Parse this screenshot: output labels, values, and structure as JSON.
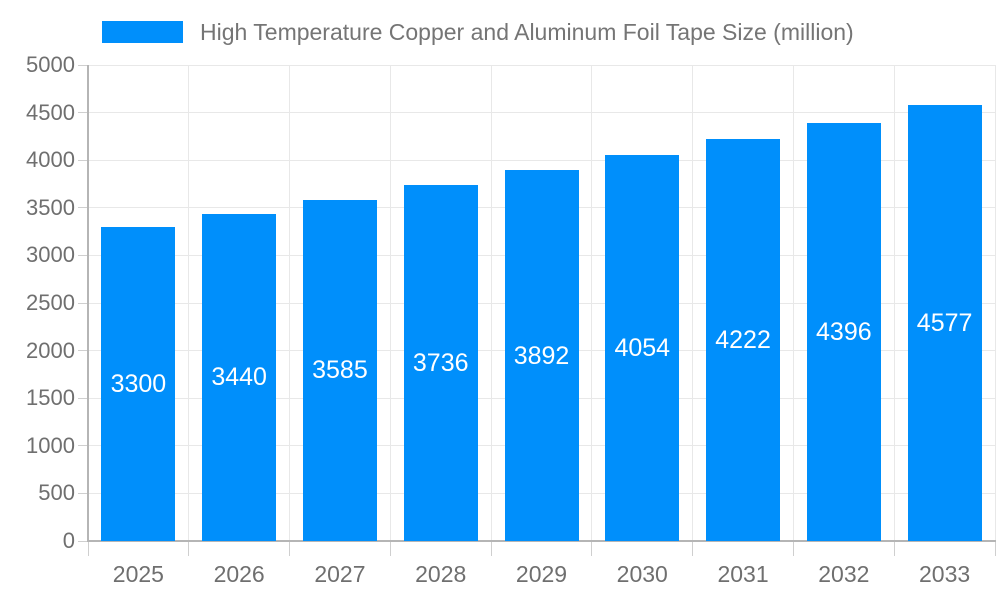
{
  "legend": {
    "label": "High Temperature Copper and Aluminum Foil Tape Size (million)",
    "marker_color": "#008FFB"
  },
  "chart_data": {
    "type": "bar",
    "title": "High Temperature Copper and Aluminum Foil Tape Size (million)",
    "categories": [
      "2025",
      "2026",
      "2027",
      "2028",
      "2029",
      "2030",
      "2031",
      "2032",
      "2033"
    ],
    "values": [
      3300,
      3440,
      3585,
      3736,
      3892,
      4054,
      4222,
      4396,
      4577
    ],
    "xlabel": "",
    "ylabel": "",
    "ylim": [
      0,
      5000
    ],
    "ytick_step": 500,
    "ytick_labels": [
      "0",
      "500",
      "1000",
      "1500",
      "2000",
      "2500",
      "3000",
      "3500",
      "4000",
      "4500",
      "5000"
    ],
    "grid": true,
    "legend_position": "top",
    "value_labels": "inside-center"
  },
  "colors": {
    "bar": "#008FFB",
    "grid_line": "#e8e8e8",
    "axis_line": "#b5b5b5",
    "tick": "#cfcfcf",
    "axis_label": "#6f6f6f",
    "title": "#757575",
    "value_label": "#ffffff"
  }
}
